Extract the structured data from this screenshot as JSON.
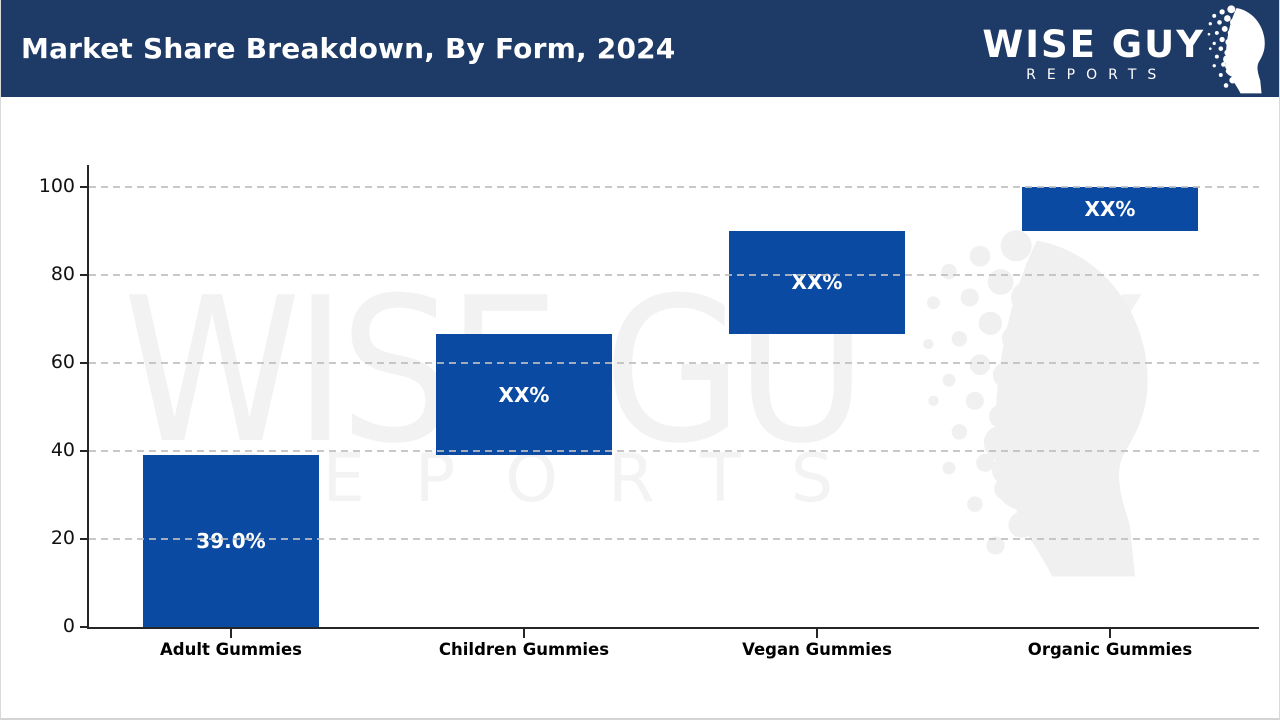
{
  "header": {
    "title": "Market Share Breakdown, By Form, 2024",
    "logo": {
      "line1": "WISE GUY",
      "line2": "REPORTS"
    }
  },
  "watermark": {
    "text1": "WISE GU",
    "text_y": "Y",
    "text2": "REPORTS"
  },
  "chart_data": {
    "type": "bar",
    "subtype": "waterfall",
    "title": "Market Share Breakdown, By Form, 2024",
    "categories": [
      "Adult Gummies",
      "Children Gummies",
      "Vegan Gummies",
      "Organic Gummies"
    ],
    "segments": [
      {
        "category": "Adult Gummies",
        "start": 0,
        "end": 39.0,
        "value": 39.0,
        "label": "39.0%"
      },
      {
        "category": "Children Gummies",
        "start": 39.0,
        "end": 66.6,
        "value": 27.6,
        "label": "XX%"
      },
      {
        "category": "Vegan Gummies",
        "start": 66.6,
        "end": 90.0,
        "value": 23.4,
        "label": "XX%"
      },
      {
        "category": "Organic Gummies",
        "start": 90.0,
        "end": 100.0,
        "value": 10.0,
        "label": "XX%"
      }
    ],
    "yticks": [
      0,
      20,
      40,
      60,
      80,
      100
    ],
    "ylim": [
      0,
      105
    ],
    "xlabel": "",
    "ylabel": "",
    "grid": "horizontal-dashed-over-bars",
    "legend": "none",
    "bar_color": "#0b4aa2",
    "bar_label_color": "#ffffff",
    "axis_color": "#262626",
    "header_bg": "#1e3a66",
    "watermark_color": "#f2f2f2"
  }
}
